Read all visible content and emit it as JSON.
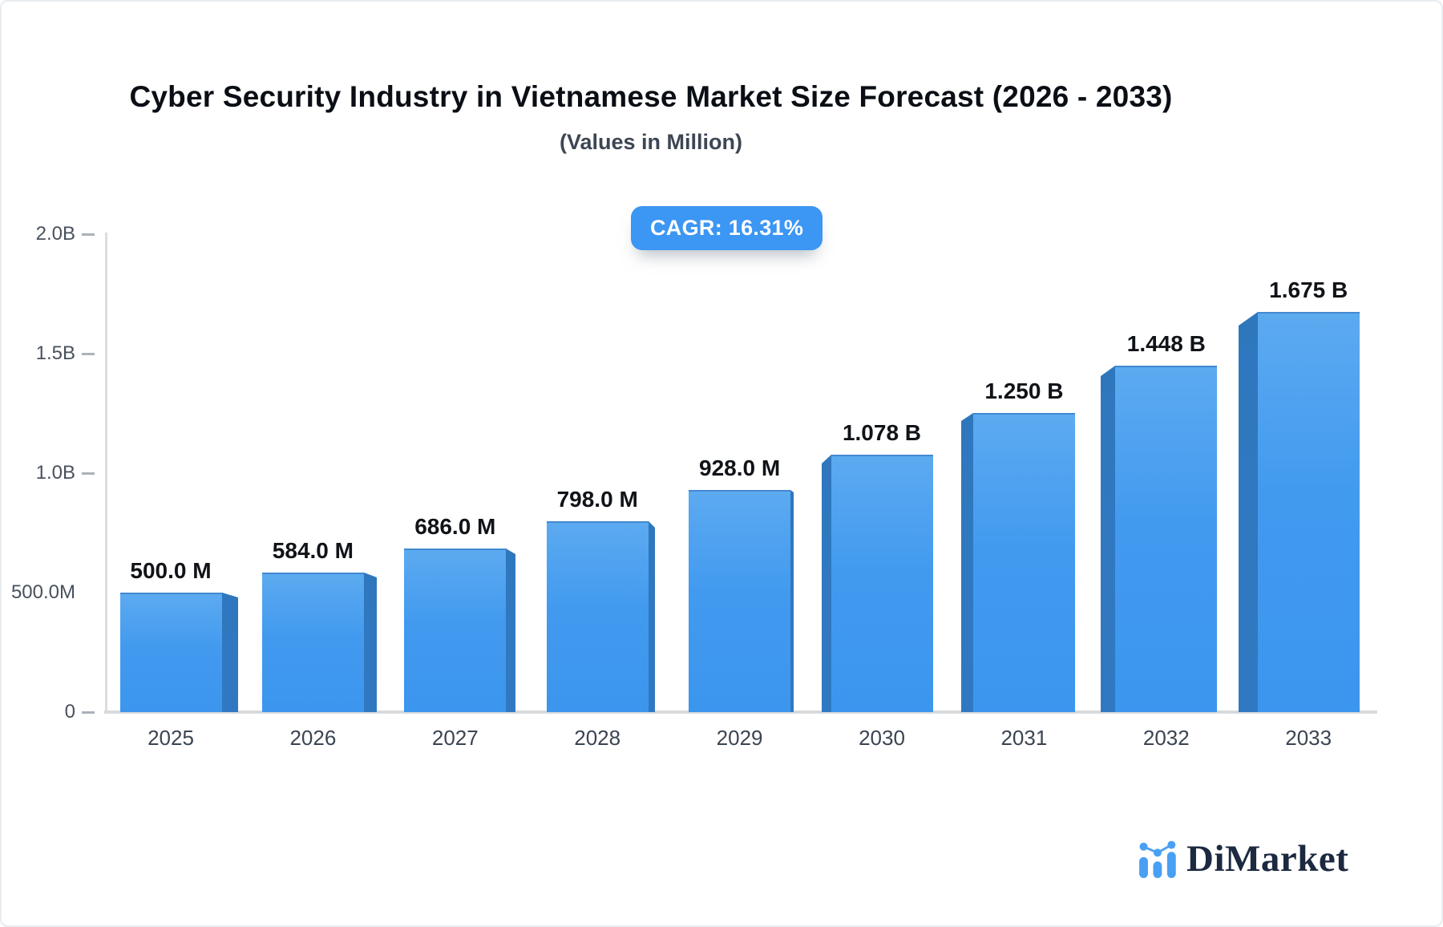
{
  "page": {
    "title": "Cyber Security Industry in Vietnamese Market Size Forecast (2026 - 2033)",
    "subtitle": "(Values in Million)",
    "cagr_badge": "CAGR: 16.31%"
  },
  "chart_data": {
    "type": "bar",
    "title": "Cyber Security Industry in Vietnamese Market Size Forecast (2026 - 2033)",
    "subtitle": "(Values in Million)",
    "annotation": "CAGR: 16.31%",
    "categories": [
      "2025",
      "2026",
      "2027",
      "2028",
      "2029",
      "2030",
      "2031",
      "2032",
      "2033"
    ],
    "values_millions": [
      500,
      584,
      686,
      798,
      928,
      1078,
      1250,
      1448,
      1675
    ],
    "value_labels": [
      "500.0 M",
      "584.0 M",
      "686.0 M",
      "798.0 M",
      "928.0 M",
      "1.078 B",
      "1.250 B",
      "1.448 B",
      "1.675 B"
    ],
    "y_axis_ticks": [
      "2.0B",
      "1.5B",
      "1.0B",
      "500.0M",
      "0"
    ],
    "ylim_millions": [
      0,
      2000
    ],
    "grid": false,
    "legend": "none",
    "style_3d": true,
    "colors": {
      "bar_face": "#3e97ee",
      "bar_face_light": "#5caaf0",
      "bar_side": "#2f79c0",
      "accent_badge": "#3c96f3",
      "axis": "#d7dadd",
      "label_text": "#101317"
    }
  },
  "logo": {
    "text": "DiMarket",
    "icon": "bar-chart-logo-icon",
    "text_color": "#1c2940",
    "icon_color": "#49a0f3"
  }
}
